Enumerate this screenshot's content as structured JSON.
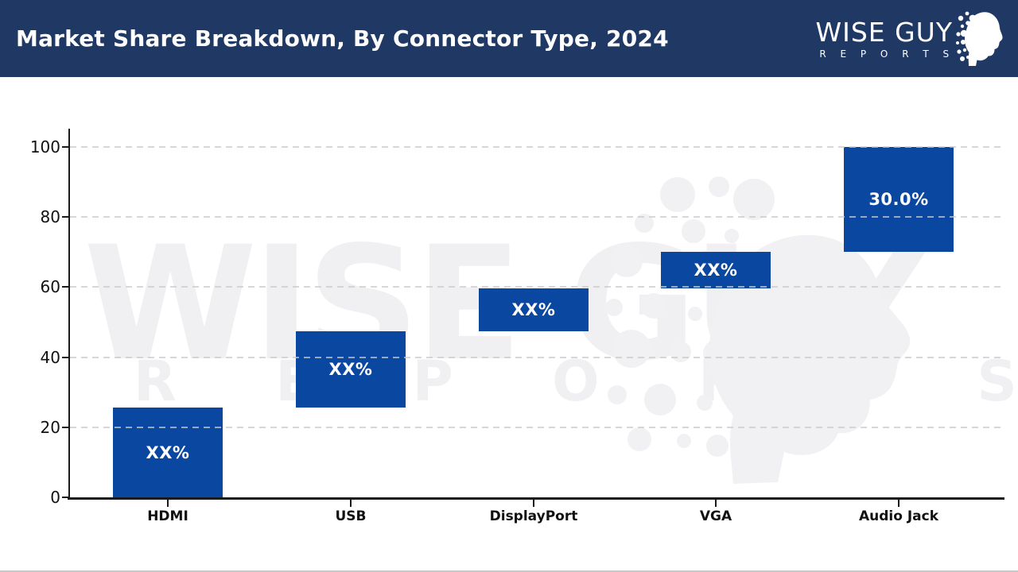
{
  "header": {
    "title": "Market Share Breakdown, By Connector Type, 2024",
    "logo": {
      "line1": "WISE GUY",
      "line2": "R E P O R T S"
    }
  },
  "watermark": {
    "line1": "WISE GUY",
    "line2": "R E P O R T S"
  },
  "colors": {
    "header_bg": "#1F3864",
    "bar": "#0A47A0",
    "grid": "#D9D9D9",
    "axis": "#1A1A1A",
    "watermark": "#F0F0F3",
    "bar_label": "#FFFFFF"
  },
  "chart_data": {
    "type": "bar",
    "subtype": "waterfall-floating-bars",
    "title": "Market Share Breakdown, By Connector Type, 2024",
    "categories": [
      "HDMI",
      "USB",
      "DisplayPort",
      "VGA",
      "Audio Jack"
    ],
    "segments": [
      {
        "category": "HDMI",
        "start": 0,
        "end": 25.6,
        "label": "XX%"
      },
      {
        "category": "USB",
        "start": 25.6,
        "end": 47.3,
        "label": "XX%"
      },
      {
        "category": "DisplayPort",
        "start": 47.3,
        "end": 59.7,
        "label": "XX%"
      },
      {
        "category": "VGA",
        "start": 59.7,
        "end": 70.0,
        "label": "XX%"
      },
      {
        "category": "Audio Jack",
        "start": 70.0,
        "end": 100.0,
        "label": "30.0%"
      }
    ],
    "xlabel": "",
    "ylabel": "",
    "yticks": [
      0,
      20,
      40,
      60,
      80,
      100
    ],
    "ylim": [
      0,
      105
    ],
    "grid": "horizontal-dashed",
    "legend": "none"
  }
}
